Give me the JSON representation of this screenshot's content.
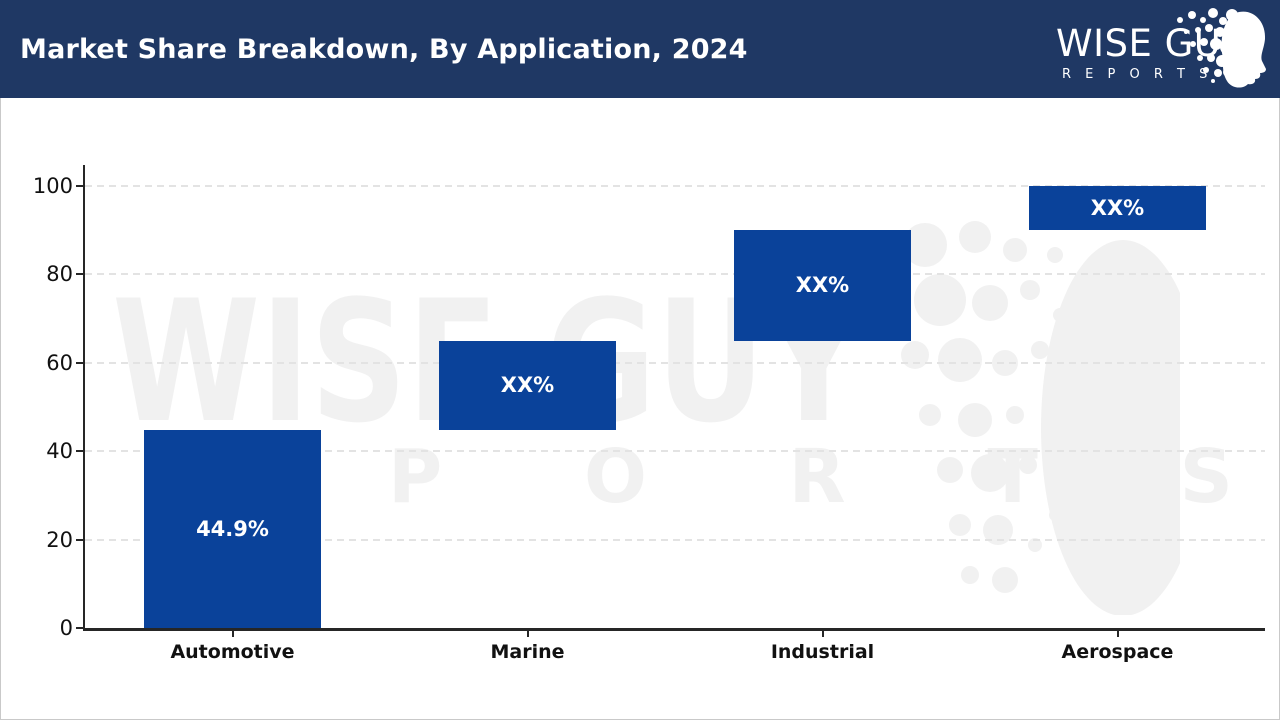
{
  "header": {
    "title": "Market Share Breakdown, By Application, 2024",
    "logo": {
      "line1": "WISE GUY",
      "line2": "R E P O R T S"
    }
  },
  "watermark": {
    "line1": "WISE GUY",
    "line2": "P O R T S"
  },
  "colors": {
    "header_bg": "#1f3864",
    "bar_fill": "#0a429a",
    "bar_label": "#ffffff",
    "grid": "#e3e3e3",
    "axis": "#262626",
    "tick_text": "#111111",
    "watermark": "#f1f1f1"
  },
  "chart_data": {
    "type": "bar",
    "subtype": "waterfall",
    "title": "Market Share Breakdown, By Application, 2024",
    "categories": [
      "Automotive",
      "Marine",
      "Industrial",
      "Aerospace"
    ],
    "segments": [
      {
        "category": "Automotive",
        "start": 0,
        "end": 44.9,
        "label": "44.9%"
      },
      {
        "category": "Marine",
        "start": 44.9,
        "end": 65,
        "label": "XX%"
      },
      {
        "category": "Industrial",
        "start": 65,
        "end": 90,
        "label": "XX%"
      },
      {
        "category": "Aerospace",
        "start": 90,
        "end": 100,
        "label": "XX%"
      }
    ],
    "xlabel": "",
    "ylabel": "",
    "yticks": [
      0,
      20,
      40,
      60,
      80,
      100
    ],
    "ylim": [
      0,
      100
    ],
    "grid": "horizontal-dashed",
    "legend": "none"
  }
}
